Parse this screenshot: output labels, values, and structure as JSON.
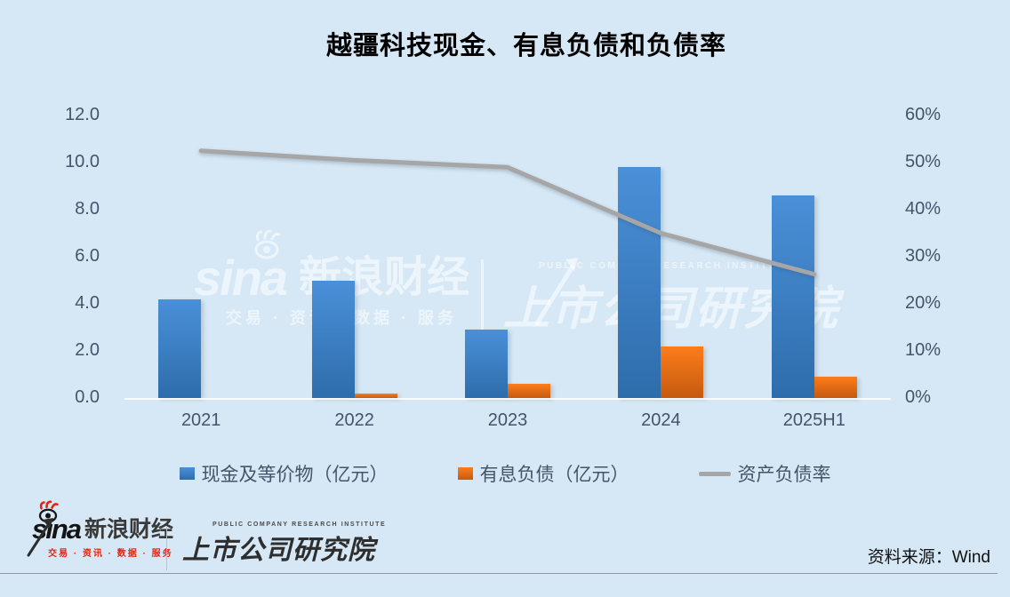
{
  "title": "越疆科技现金、有息负债和负债率",
  "chart_data": {
    "type": "bar",
    "categories": [
      "2021",
      "2022",
      "2023",
      "2024",
      "2025H1"
    ],
    "series": [
      {
        "name": "现金及等价物（亿元）",
        "type": "bar",
        "axis": "left",
        "values": [
          4.2,
          5.0,
          2.9,
          9.8,
          8.6
        ],
        "color_top": "#4a90d8",
        "color_bottom": "#2e6dac"
      },
      {
        "name": "有息负债（亿元）",
        "type": "bar",
        "axis": "left",
        "values": [
          0,
          0.2,
          0.6,
          2.2,
          0.9
        ],
        "color_top": "#fd7d1a",
        "color_bottom": "#c55a11"
      },
      {
        "name": "资产负债率",
        "type": "line",
        "axis": "right",
        "values": [
          52.5,
          50.5,
          49.0,
          35.0,
          26.3
        ],
        "color": "#a6a6a6"
      }
    ],
    "left_axis": {
      "min": 0,
      "max": 12,
      "step": 2,
      "tick_labels": [
        "0.0",
        "2.0",
        "4.0",
        "6.0",
        "8.0",
        "10.0",
        "12.0"
      ]
    },
    "right_axis": {
      "min": 0,
      "max": 60,
      "step": 10,
      "tick_labels": [
        "0%",
        "10%",
        "20%",
        "30%",
        "40%",
        "50%",
        "60%"
      ]
    },
    "grid": false,
    "legend_position": "bottom"
  },
  "watermark": {
    "sina_latin": "sina",
    "sina_cn": "新浪财经",
    "sina_tagline": "交易 · 资讯 · 数据 · 服务",
    "institute_en": "PUBLIC COMPANY RESEARCH INSTITUTE",
    "institute_cn": "上市公司研究院"
  },
  "footer": {
    "sina_latin": "sina",
    "sina_cn": "新浪财经",
    "sina_tagline": "交易 · 资讯 · 数据 · 服务",
    "institute_en": "PUBLIC COMPANY RESEARCH INSTITUTE",
    "institute_cn": "上市公司研究院",
    "source": "资料来源：Wind"
  },
  "colors": {
    "background": "#d6e8f5",
    "title_text": "#000000",
    "axis_text": "#44546a",
    "bar_cash_top": "#4a90d8",
    "bar_cash_bottom": "#2e6dac",
    "bar_debt_top": "#fd7d1a",
    "bar_debt_bottom": "#c55a11",
    "ratio_line": "#a6a6a6",
    "sina_red": "#e8220e",
    "footer_rule": "#8e9aa6"
  }
}
